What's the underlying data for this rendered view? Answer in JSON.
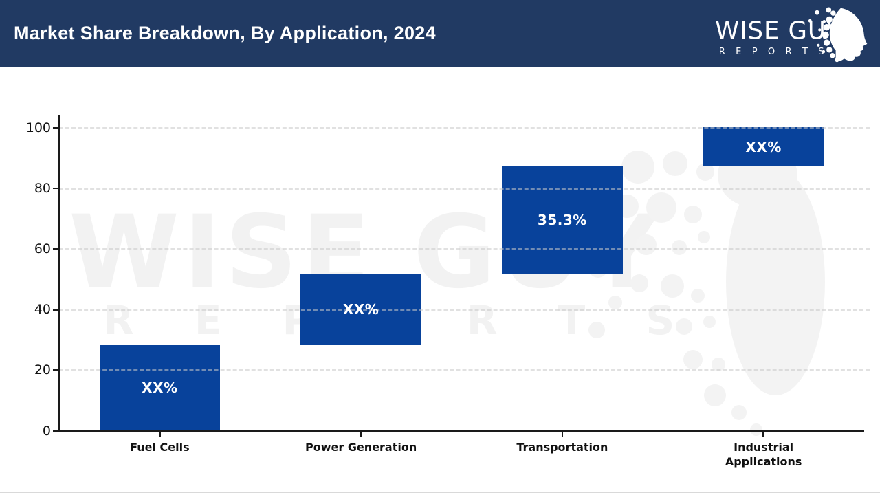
{
  "header": {
    "title": "Market Share Breakdown, By Application, 2024",
    "logo": {
      "wordmark": "WISE GUY",
      "subtext": "R E P O R T S"
    }
  },
  "watermark": {
    "line1": "WISE GUY",
    "line2": "R E P O R T S"
  },
  "colors": {
    "header_bg": "#213A63",
    "bar_fill": "#08429B",
    "bar_label": "#FFFFFF",
    "axis": "#1A1A1A",
    "gridline": "#C9C9C9",
    "watermark": "#F2F2F2",
    "bottom_rule": "#D9D9D9"
  },
  "chart_data": {
    "type": "bar",
    "subtype": "floating-segment-waterfall",
    "title": "Market Share Breakdown, By Application, 2024",
    "xlabel": "",
    "ylabel": "",
    "ylim": [
      0,
      105
    ],
    "yticks": [
      0,
      20,
      40,
      60,
      80,
      100
    ],
    "grid": "horizontal-dashed",
    "legend": "none",
    "categories": [
      "Fuel Cells",
      "Power Generation",
      "Transportation",
      "Industrial\nApplications"
    ],
    "bars": [
      {
        "category": "Fuel Cells",
        "start": 0,
        "end": 28.2,
        "value_label": "XX%"
      },
      {
        "category": "Power Generation",
        "start": 28.2,
        "end": 51.9,
        "value_label": "XX%"
      },
      {
        "category": "Transportation",
        "start": 51.9,
        "end": 87.2,
        "value_label": "35.3%"
      },
      {
        "category": "Industrial Applications",
        "start": 87.2,
        "end": 100.2,
        "value_label": "XX%"
      }
    ]
  }
}
